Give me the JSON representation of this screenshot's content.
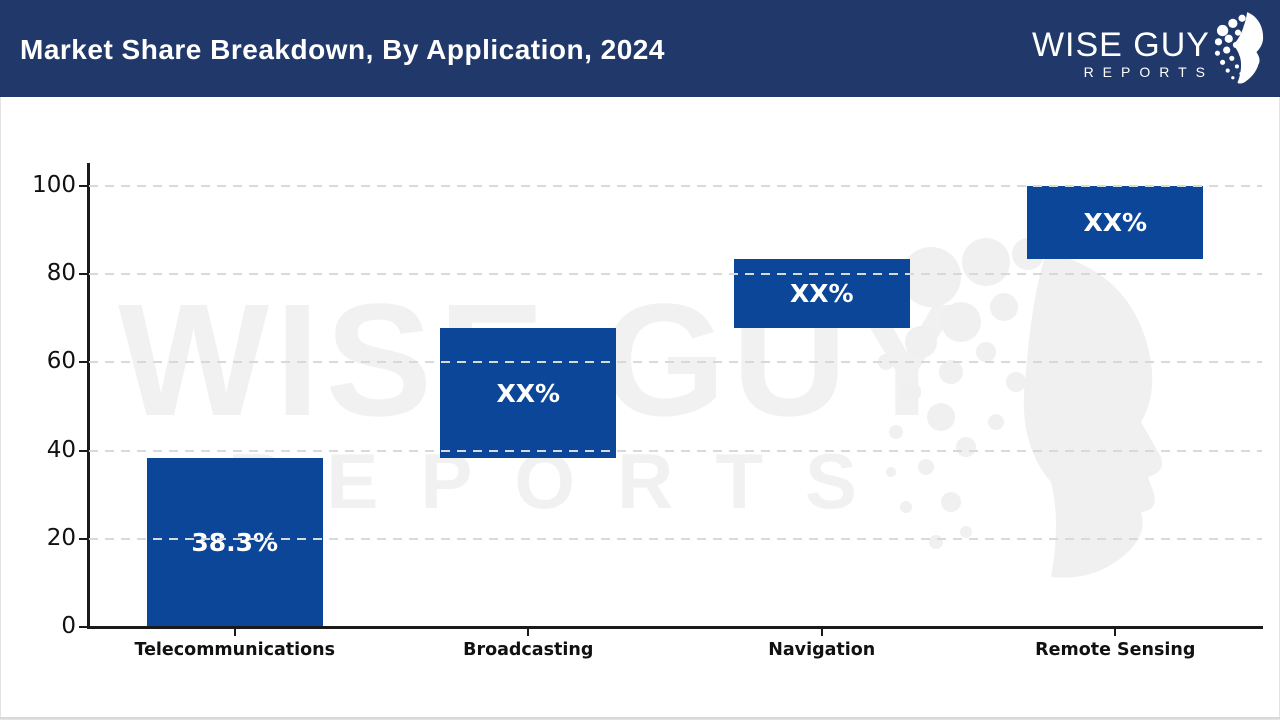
{
  "header": {
    "title": "Market Share Breakdown, By Application, 2024",
    "bg_color": "#20386a",
    "logo": {
      "line1": "WISE GUY",
      "line2": "REPORTS"
    }
  },
  "watermark": {
    "line1": "WISE GUY",
    "line2": "REPORTS"
  },
  "chart_data": {
    "type": "bar",
    "subtype": "waterfall-floating-bars",
    "title": "Market Share Breakdown, By Application, 2024",
    "xlabel": "",
    "ylabel": "",
    "ylim": [
      0,
      100
    ],
    "yticks": [
      0,
      20,
      40,
      60,
      80,
      100
    ],
    "grid": "horizontal-dashed-over-bars",
    "legend": "none",
    "categories": [
      "Telecommunications",
      "Broadcasting",
      "Navigation",
      "Remote Sensing"
    ],
    "segments": [
      {
        "category": "Telecommunications",
        "start": 0,
        "end": 38.3,
        "label": "38.3%"
      },
      {
        "category": "Broadcasting",
        "start": 38.3,
        "end": 67.8,
        "label": "XX%"
      },
      {
        "category": "Navigation",
        "start": 67.8,
        "end": 83.4,
        "label": "XX%"
      },
      {
        "category": "Remote Sensing",
        "start": 83.4,
        "end": 100,
        "label": "XX%"
      }
    ],
    "bar_color": "#0b4699",
    "value_label_color": "#ffffff",
    "axis_color": "#1a1a1a",
    "grid_color": "#d9d9d9"
  }
}
